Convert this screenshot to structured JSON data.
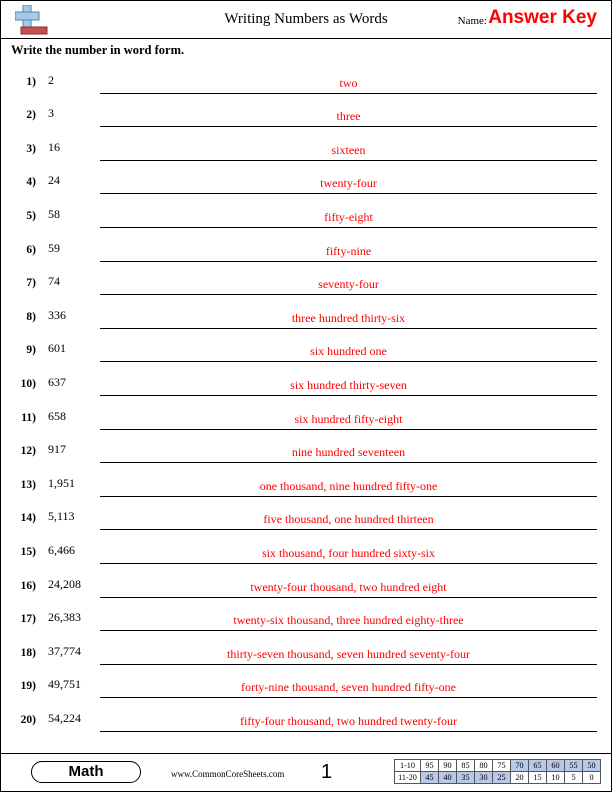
{
  "header": {
    "title": "Writing Numbers as Words",
    "name_label": "Name:",
    "answer_key": "Answer Key"
  },
  "instruction": "Write the number in word form.",
  "problems": [
    {
      "n": "1)",
      "q": "2",
      "a": "two"
    },
    {
      "n": "2)",
      "q": "3",
      "a": "three"
    },
    {
      "n": "3)",
      "q": "16",
      "a": "sixteen"
    },
    {
      "n": "4)",
      "q": "24",
      "a": "twenty-four"
    },
    {
      "n": "5)",
      "q": "58",
      "a": "fifty-eight"
    },
    {
      "n": "6)",
      "q": "59",
      "a": "fifty-nine"
    },
    {
      "n": "7)",
      "q": "74",
      "a": "seventy-four"
    },
    {
      "n": "8)",
      "q": "336",
      "a": "three hundred thirty-six"
    },
    {
      "n": "9)",
      "q": "601",
      "a": "six hundred one"
    },
    {
      "n": "10)",
      "q": "637",
      "a": "six hundred thirty-seven"
    },
    {
      "n": "11)",
      "q": "658",
      "a": "six hundred fifty-eight"
    },
    {
      "n": "12)",
      "q": "917",
      "a": "nine hundred seventeen"
    },
    {
      "n": "13)",
      "q": "1,951",
      "a": "one thousand, nine hundred fifty-one"
    },
    {
      "n": "14)",
      "q": "5,113",
      "a": "five thousand, one hundred thirteen"
    },
    {
      "n": "15)",
      "q": "6,466",
      "a": "six thousand, four hundred sixty-six"
    },
    {
      "n": "16)",
      "q": "24,208",
      "a": "twenty-four thousand, two hundred eight"
    },
    {
      "n": "17)",
      "q": "26,383",
      "a": "twenty-six thousand, three hundred eighty-three"
    },
    {
      "n": "18)",
      "q": "37,774",
      "a": "thirty-seven thousand, seven hundred seventy-four"
    },
    {
      "n": "19)",
      "q": "49,751",
      "a": "forty-nine thousand, seven hundred fifty-one"
    },
    {
      "n": "20)",
      "q": "54,224",
      "a": "fifty-four thousand, two hundred twenty-four"
    }
  ],
  "footer": {
    "subject": "Math",
    "site": "www.CommonCoreSheets.com",
    "page": "1",
    "score": {
      "row1_label": "1-10",
      "row2_label": "11-20",
      "row1": [
        "95",
        "90",
        "85",
        "80",
        "75",
        "70",
        "65",
        "60",
        "55",
        "50"
      ],
      "row2": [
        "45",
        "40",
        "35",
        "30",
        "25",
        "20",
        "15",
        "10",
        "5",
        "0"
      ],
      "shade_from_index_row1": 5,
      "shade_to_index_row2": 4
    }
  },
  "colors": {
    "answer": "#ff0000",
    "shade": "#b8c8e8"
  }
}
